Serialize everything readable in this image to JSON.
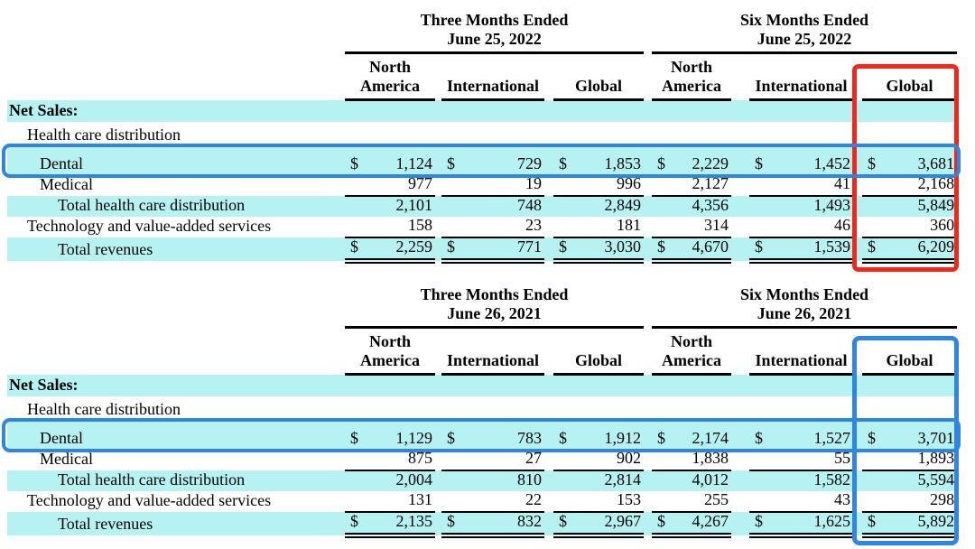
{
  "colors": {
    "highlight": "#b6f2f2",
    "annotation_blue": "#2e86e0",
    "annotation_red": "#f0281c"
  },
  "tables": [
    {
      "group_headers": [
        {
          "line1": "Three Months Ended",
          "line2": "June 25, 2022"
        },
        {
          "line1": "Six Months Ended",
          "line2": "June 25, 2022"
        }
      ],
      "column_headers": [
        {
          "line1": "North",
          "line2": "America"
        },
        {
          "line1": "",
          "line2": "International"
        },
        {
          "line1": "",
          "line2": "Global"
        },
        {
          "line1": "North",
          "line2": "America"
        },
        {
          "line1": "",
          "line2": "International"
        },
        {
          "line1": "",
          "line2": "Global"
        }
      ],
      "rows": [
        {
          "label": "Net Sales:",
          "kind": "section",
          "indent": 0,
          "highlight": true,
          "currency": "",
          "rule": "none",
          "values": []
        },
        {
          "label": "Health care distribution",
          "kind": "group",
          "indent": 1,
          "highlight": false,
          "currency": "",
          "rule": "none",
          "values": []
        },
        {
          "label": "Dental",
          "kind": "dental",
          "indent": 2,
          "highlight": true,
          "currency": "$",
          "rule": "none",
          "values": [
            "1,124",
            "729",
            "1,853",
            "2,229",
            "1,452",
            "3,681"
          ]
        },
        {
          "label": "Medical",
          "kind": "item",
          "indent": 2,
          "highlight": false,
          "currency": "",
          "rule": "single",
          "values": [
            "977",
            "19",
            "996",
            "2,127",
            "41",
            "2,168"
          ]
        },
        {
          "label": "Total health care distribution",
          "kind": "subtotal",
          "indent": 3,
          "highlight": true,
          "currency": "",
          "rule": "none",
          "values": [
            "2,101",
            "748",
            "2,849",
            "4,356",
            "1,493",
            "5,849"
          ]
        },
        {
          "label": "Technology and value-added services",
          "kind": "item",
          "indent": 1,
          "highlight": false,
          "currency": "",
          "rule": "single",
          "values": [
            "158",
            "23",
            "181",
            "314",
            "46",
            "360"
          ]
        },
        {
          "label": "Total revenues",
          "kind": "total",
          "indent": 3,
          "highlight": true,
          "currency": "$",
          "rule": "double",
          "values": [
            "2,259",
            "771",
            "3,030",
            "4,670",
            "1,539",
            "6,209"
          ]
        }
      ]
    },
    {
      "group_headers": [
        {
          "line1": "Three Months Ended",
          "line2": "June 26, 2021"
        },
        {
          "line1": "Six Months Ended",
          "line2": "June 26, 2021"
        }
      ],
      "column_headers": [
        {
          "line1": "North",
          "line2": "America"
        },
        {
          "line1": "",
          "line2": "International"
        },
        {
          "line1": "",
          "line2": "Global"
        },
        {
          "line1": "North",
          "line2": "America"
        },
        {
          "line1": "",
          "line2": "International"
        },
        {
          "line1": "",
          "line2": "Global"
        }
      ],
      "rows": [
        {
          "label": "Net Sales:",
          "kind": "section",
          "indent": 0,
          "highlight": true,
          "currency": "",
          "rule": "none",
          "values": []
        },
        {
          "label": "Health care distribution",
          "kind": "group",
          "indent": 1,
          "highlight": false,
          "currency": "",
          "rule": "none",
          "values": []
        },
        {
          "label": "Dental",
          "kind": "dental",
          "indent": 2,
          "highlight": true,
          "currency": "$",
          "rule": "none",
          "values": [
            "1,129",
            "783",
            "1,912",
            "2,174",
            "1,527",
            "3,701"
          ]
        },
        {
          "label": "Medical",
          "kind": "item",
          "indent": 2,
          "highlight": false,
          "currency": "",
          "rule": "single",
          "values": [
            "875",
            "27",
            "902",
            "1,838",
            "55",
            "1,893"
          ]
        },
        {
          "label": "Total health care distribution",
          "kind": "subtotal",
          "indent": 3,
          "highlight": true,
          "currency": "",
          "rule": "none",
          "values": [
            "2,004",
            "810",
            "2,814",
            "4,012",
            "1,582",
            "5,594"
          ]
        },
        {
          "label": "Technology and value-added services",
          "kind": "item",
          "indent": 1,
          "highlight": false,
          "currency": "",
          "rule": "single",
          "values": [
            "131",
            "22",
            "153",
            "255",
            "43",
            "298"
          ]
        },
        {
          "label": "Total revenues",
          "kind": "total",
          "indent": 3,
          "highlight": true,
          "currency": "$",
          "rule": "double",
          "values": [
            "2,135",
            "832",
            "2,967",
            "4,267",
            "1,625",
            "5,892"
          ]
        }
      ]
    }
  ],
  "annotations": [
    {
      "name": "red-box",
      "target": "Global column, Six Months Ended June 25, 2022"
    },
    {
      "name": "blue-row-box-2022",
      "target": "Dental row, 2022 table"
    },
    {
      "name": "blue-column-box-2021",
      "target": "Global column, Six Months Ended June 26, 2021"
    },
    {
      "name": "blue-row-box-2021",
      "target": "Dental row, 2021 table"
    }
  ]
}
